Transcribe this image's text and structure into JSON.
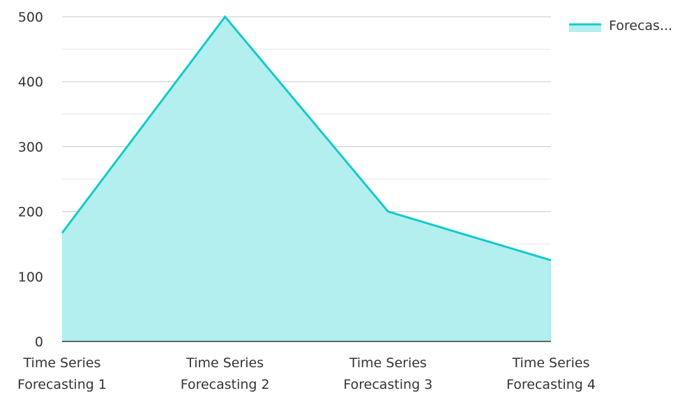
{
  "chart_data": {
    "type": "area",
    "categories": [
      [
        "Time Series",
        "Forecasting 1"
      ],
      [
        "Time Series",
        "Forecasting 2"
      ],
      [
        "Time Series",
        "Forecasting 3"
      ],
      [
        "Time Series",
        "Forecasting 4"
      ]
    ],
    "series": [
      {
        "name": "Forecas...",
        "values": [
          167,
          500,
          200,
          125
        ]
      }
    ],
    "y_ticks": [
      "0",
      "100",
      "200",
      "300",
      "400",
      "500"
    ],
    "ylim": [
      0,
      500
    ],
    "grid": true,
    "legend_position": "top-right",
    "colors": {
      "line": "#14c9cb",
      "fill": "#b2efee",
      "major_grid": "#c8c8c8",
      "minor_grid": "#e6e6e6",
      "axis": "#333333"
    }
  }
}
